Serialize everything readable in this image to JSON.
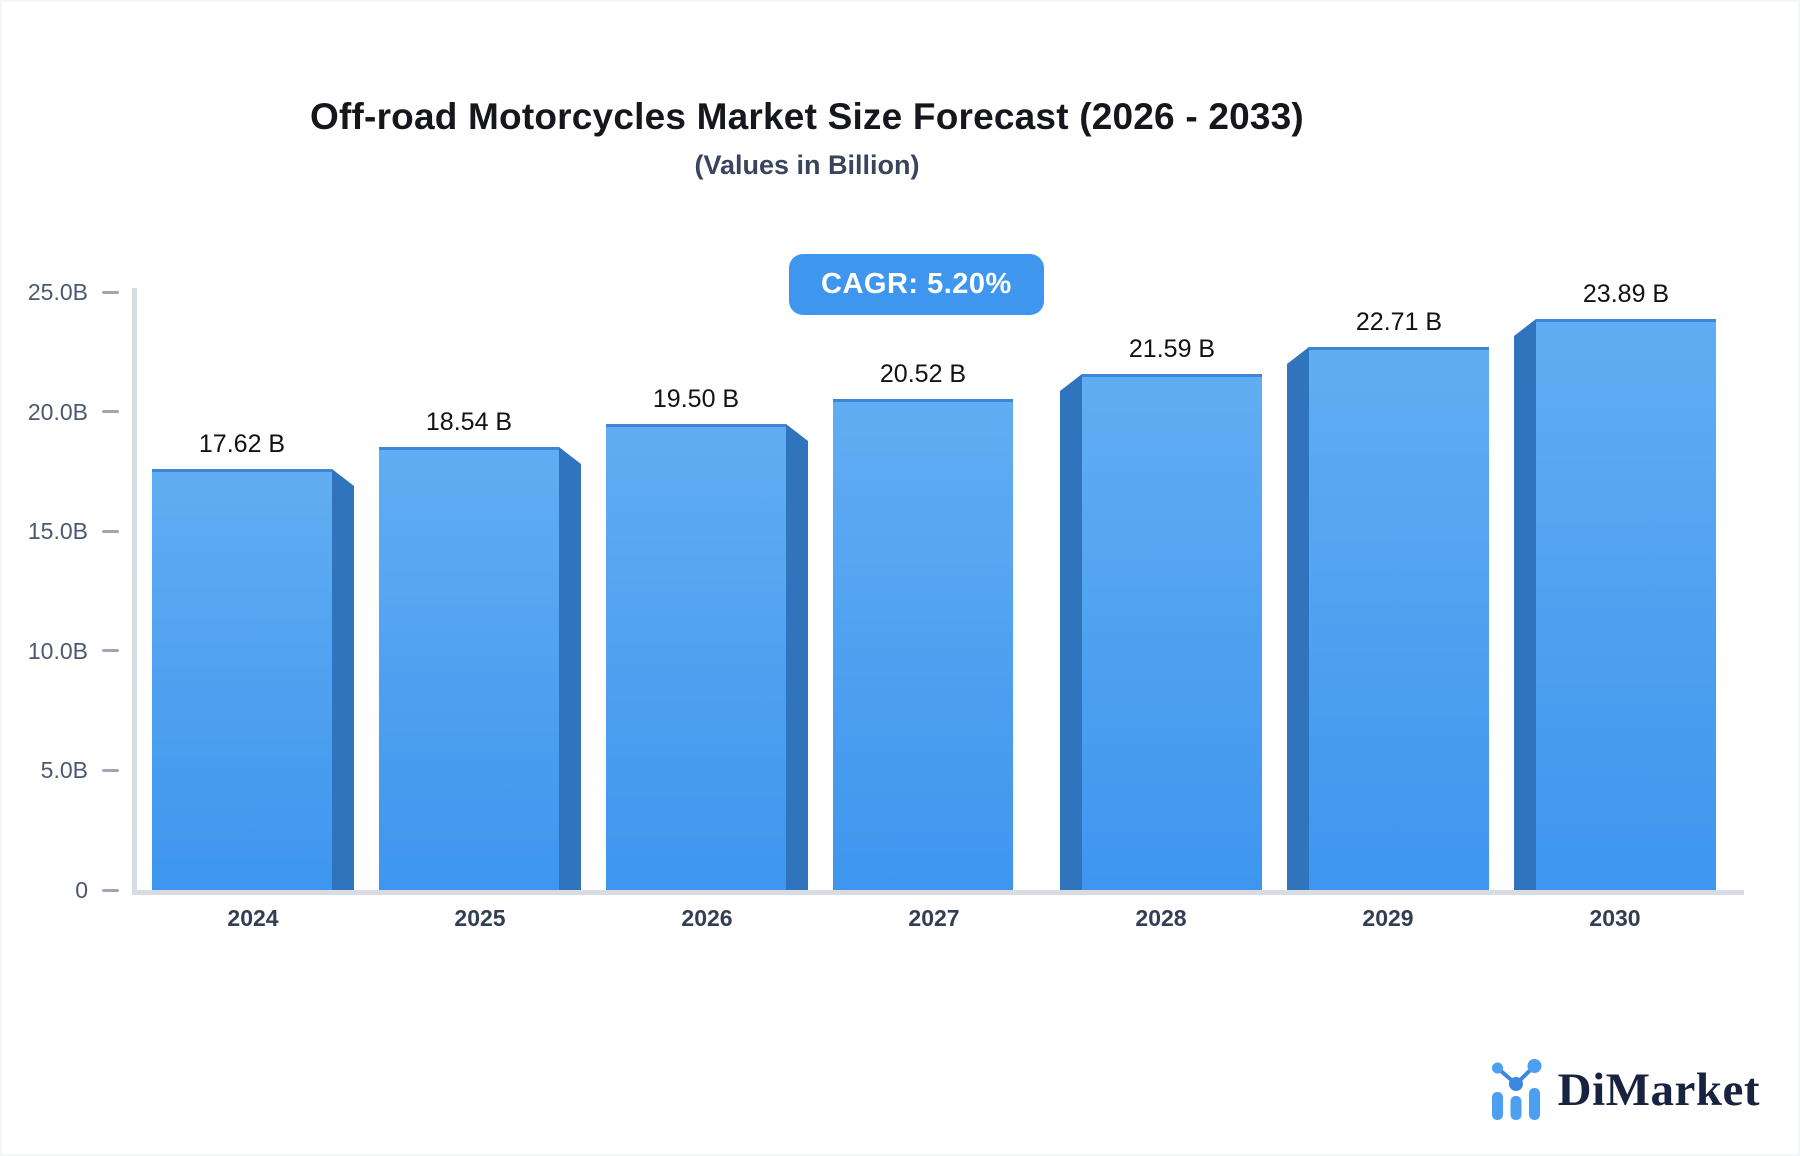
{
  "page": {
    "logo": {
      "brand": "DiMarket",
      "icon": "bar-chart-logo-icon"
    }
  },
  "colors": {
    "bar_face_top": "#61adf3",
    "bar_face_bottom": "#3e96ee",
    "bar_top_edge": "#3f86d6",
    "bar_side": "#2f74bc",
    "badge_bg": "#3e96ee",
    "axis_line": "#d8dce2",
    "tick": "#9ca6b4",
    "title_text": "#15171c",
    "subtitle_text": "#39455c",
    "ytick_text": "#4c5870",
    "xtick_text": "#323e56",
    "value_text": "#101215",
    "logo_text": "#17233f",
    "logo_icon": "#4d9ff1"
  },
  "chart_data": {
    "type": "bar",
    "title": "Off-road Motorcycles Market Size Forecast (2026 - 2033)",
    "subtitle": "(Values in Billion)",
    "badge": "CAGR: 5.20%",
    "unit": "Billion",
    "categories": [
      "2024",
      "2025",
      "2026",
      "2027",
      "2028",
      "2029",
      "2030"
    ],
    "values": [
      17.62,
      18.54,
      19.5,
      20.52,
      21.59,
      22.71,
      23.89
    ],
    "value_labels": [
      "17.62 B",
      "18.54 B",
      "19.50 B",
      "20.52 B",
      "21.59 B",
      "22.71 B",
      "23.89 B"
    ],
    "y_ticks": [
      {
        "label": "0",
        "value": 0
      },
      {
        "label": "5.0B",
        "value": 5
      },
      {
        "label": "10.0B",
        "value": 10
      },
      {
        "label": "15.0B",
        "value": 15
      },
      {
        "label": "20.0B",
        "value": 20
      },
      {
        "label": "25.0B",
        "value": 25
      }
    ],
    "ylim": [
      0,
      25
    ],
    "grid": false,
    "legend": false,
    "bar_style": "3d-beveled"
  }
}
